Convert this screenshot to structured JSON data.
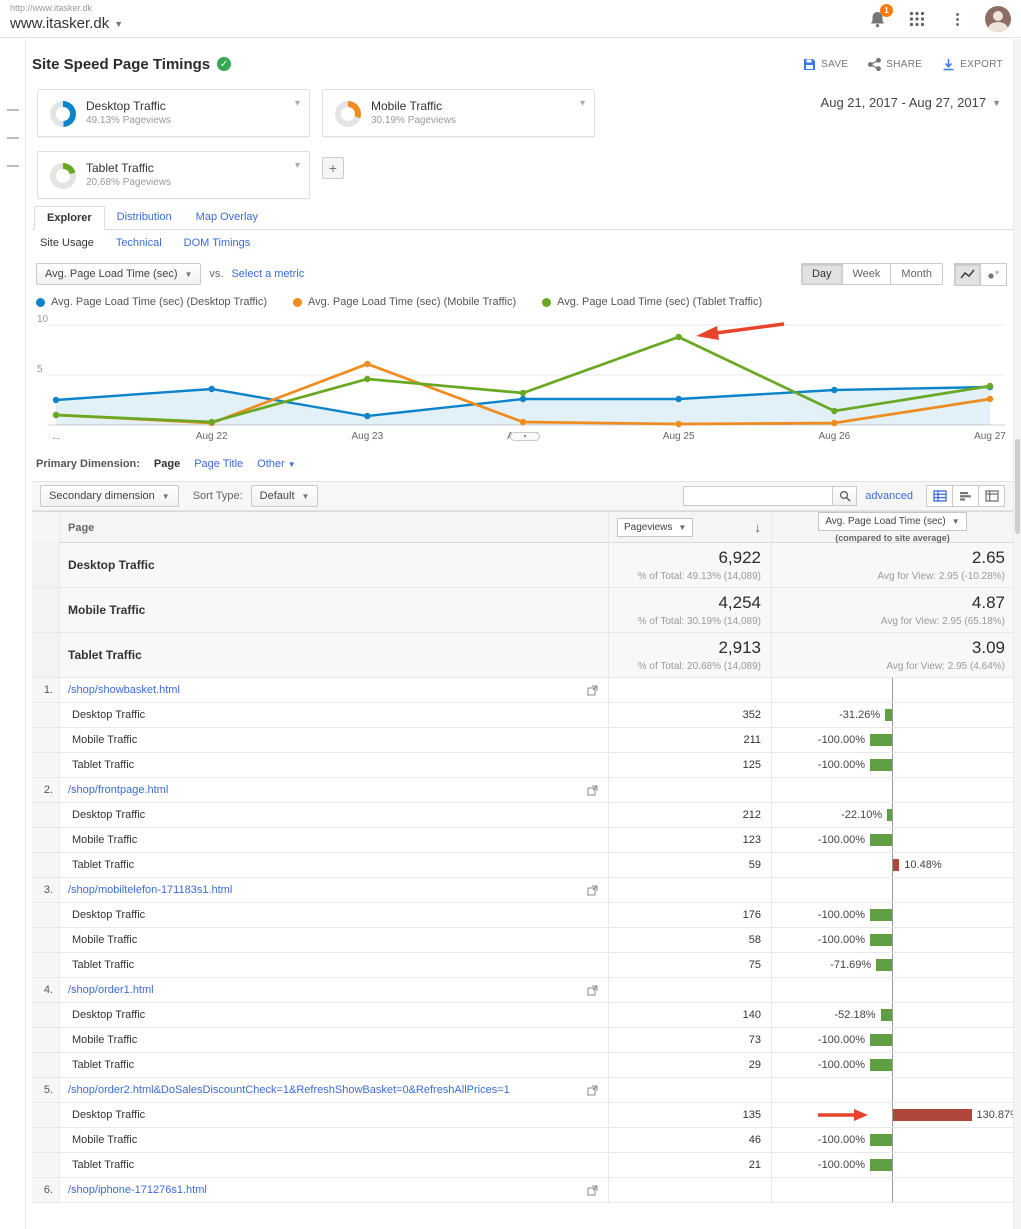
{
  "colors": {
    "pos_bar": "#b0453a",
    "neg_bar": "#5f9e41",
    "axis": "#9a9a9a",
    "arrow": "#e8442c"
  },
  "topbar": {
    "url": "http://www.itasker.dk",
    "account": "www.itasker.dk",
    "notification_count": "1"
  },
  "header": {
    "title": "Site Speed Page Timings",
    "save": "SAVE",
    "share": "SHARE",
    "export": "EXPORT"
  },
  "date_range": "Aug 21, 2017 - Aug 27, 2017",
  "segments": [
    {
      "name": "Desktop Traffic",
      "sub": "49.13% Pageviews",
      "pct": 49.13,
      "color": "#0d83c9"
    },
    {
      "name": "Mobile Traffic",
      "sub": "30.19% Pageviews",
      "pct": 30.19,
      "color": "#ef8b1f"
    },
    {
      "name": "Tablet Traffic",
      "sub": "20.68% Pageviews",
      "pct": 20.68,
      "color": "#69a823"
    }
  ],
  "add_segment_label": "+",
  "tabs": {
    "explorer": "Explorer",
    "distribution": "Distribution",
    "map_overlay": "Map Overlay"
  },
  "subtabs": {
    "site_usage": "Site Usage",
    "technical": "Technical",
    "dom_timings": "DOM Timings"
  },
  "metric_bar": {
    "metric": "Avg. Page Load Time (sec)",
    "vs": "vs.",
    "select_metric": "Select a metric",
    "granularity": [
      "Day",
      "Week",
      "Month"
    ]
  },
  "legend": [
    {
      "label": "Avg. Page Load Time (sec) (Desktop Traffic)",
      "color": "#0d83c9"
    },
    {
      "label": "Avg. Page Load Time (sec) (Mobile Traffic)",
      "color": "#ef8b1f"
    },
    {
      "label": "Avg. Page Load Time (sec) (Tablet Traffic)",
      "color": "#69a823"
    }
  ],
  "chart_data": {
    "type": "line",
    "x": [
      "Aug 21",
      "Aug 22",
      "Aug 23",
      "Aug 24",
      "Aug 25",
      "Aug 26",
      "Aug 27"
    ],
    "tick_labels": [
      "...",
      "Aug 22",
      "Aug 23",
      "Aug 24",
      "Aug 25",
      "Aug 26",
      "Aug 27"
    ],
    "ylim": [
      0,
      10
    ],
    "yticks": [
      5,
      10
    ],
    "series": [
      {
        "name": "Avg. Page Load Time (sec) (Desktop Traffic)",
        "color": "#0d83c9",
        "area": true,
        "values": [
          2.5,
          3.6,
          0.9,
          2.6,
          2.6,
          3.5,
          3.8
        ]
      },
      {
        "name": "Avg. Page Load Time (sec) (Mobile Traffic)",
        "color": "#ef8b1f",
        "values": [
          1.0,
          0.2,
          6.1,
          0.3,
          0.1,
          0.2,
          2.6
        ]
      },
      {
        "name": "Avg. Page Load Time (sec) (Tablet Traffic)",
        "color": "#69a823",
        "values": [
          1.0,
          0.3,
          4.6,
          3.2,
          8.8,
          1.4,
          3.9
        ]
      }
    ],
    "annotation": "red arrow pointing at Tablet Traffic peak on Aug 25",
    "grid": true,
    "legend_position": "top"
  },
  "primary_dimension": {
    "label": "Primary Dimension:",
    "active": "Page",
    "opt1": "Page Title",
    "opt2": "Other"
  },
  "controls": {
    "secondary": "Secondary dimension",
    "sort_label": "Sort Type:",
    "sort_value": "Default",
    "advanced": "advanced",
    "search_value": ""
  },
  "table": {
    "col_page": "Page",
    "col_pageviews": "Pageviews",
    "col_metric": "Avg. Page Load Time (sec)",
    "col_metric_note": "(compared to site average)",
    "summary": [
      {
        "name": "Desktop Traffic",
        "pageviews": "6,922",
        "pv_sub": "% of Total: 49.13% (14,089)",
        "metric": "2.65",
        "metric_sub": "Avg for View: 2.95 (-10.28%)"
      },
      {
        "name": "Mobile Traffic",
        "pageviews": "4,254",
        "pv_sub": "% of Total: 30.19% (14,089)",
        "metric": "4.87",
        "metric_sub": "Avg for View: 2.95 (65.18%)"
      },
      {
        "name": "Tablet Traffic",
        "pageviews": "2,913",
        "pv_sub": "% of Total: 20.68% (14,089)",
        "metric": "3.09",
        "metric_sub": "Avg for View: 2.95 (4.64%)"
      }
    ],
    "rows": [
      {
        "num": "1.",
        "page": "/shop/showbasket.html",
        "entries": [
          {
            "name": "Desktop Traffic",
            "pageviews": "352",
            "pct": "-31.26%"
          },
          {
            "name": "Mobile Traffic",
            "pageviews": "211",
            "pct": "-100.00%"
          },
          {
            "name": "Tablet Traffic",
            "pageviews": "125",
            "pct": "-100.00%"
          }
        ]
      },
      {
        "num": "2.",
        "page": "/shop/frontpage.html",
        "entries": [
          {
            "name": "Desktop Traffic",
            "pageviews": "212",
            "pct": "-22.10%"
          },
          {
            "name": "Mobile Traffic",
            "pageviews": "123",
            "pct": "-100.00%"
          },
          {
            "name": "Tablet Traffic",
            "pageviews": "59",
            "pct": "10.48%"
          }
        ]
      },
      {
        "num": "3.",
        "page": "/shop/mobiltelefon-171183s1.html",
        "entries": [
          {
            "name": "Desktop Traffic",
            "pageviews": "176",
            "pct": "-100.00%"
          },
          {
            "name": "Mobile Traffic",
            "pageviews": "58",
            "pct": "-100.00%"
          },
          {
            "name": "Tablet Traffic",
            "pageviews": "75",
            "pct": "-71.69%"
          }
        ]
      },
      {
        "num": "4.",
        "page": "/shop/order1.html",
        "entries": [
          {
            "name": "Desktop Traffic",
            "pageviews": "140",
            "pct": "-52.18%"
          },
          {
            "name": "Mobile Traffic",
            "pageviews": "73",
            "pct": "-100.00%"
          },
          {
            "name": "Tablet Traffic",
            "pageviews": "29",
            "pct": "-100.00%"
          }
        ]
      },
      {
        "num": "5.",
        "page": "/shop/order2.html&DoSalesDiscountCheck=1&RefreshShowBasket=0&RefreshAllPrices=1",
        "entries": [
          {
            "name": "Desktop Traffic",
            "pageviews": "135",
            "pct": "130.87%",
            "arrow": true
          },
          {
            "name": "Mobile Traffic",
            "pageviews": "46",
            "pct": "-100.00%"
          },
          {
            "name": "Tablet Traffic",
            "pageviews": "21",
            "pct": "-100.00%"
          }
        ]
      },
      {
        "num": "6.",
        "page": "/shop/iphone-171276s1.html",
        "entries": []
      }
    ]
  }
}
